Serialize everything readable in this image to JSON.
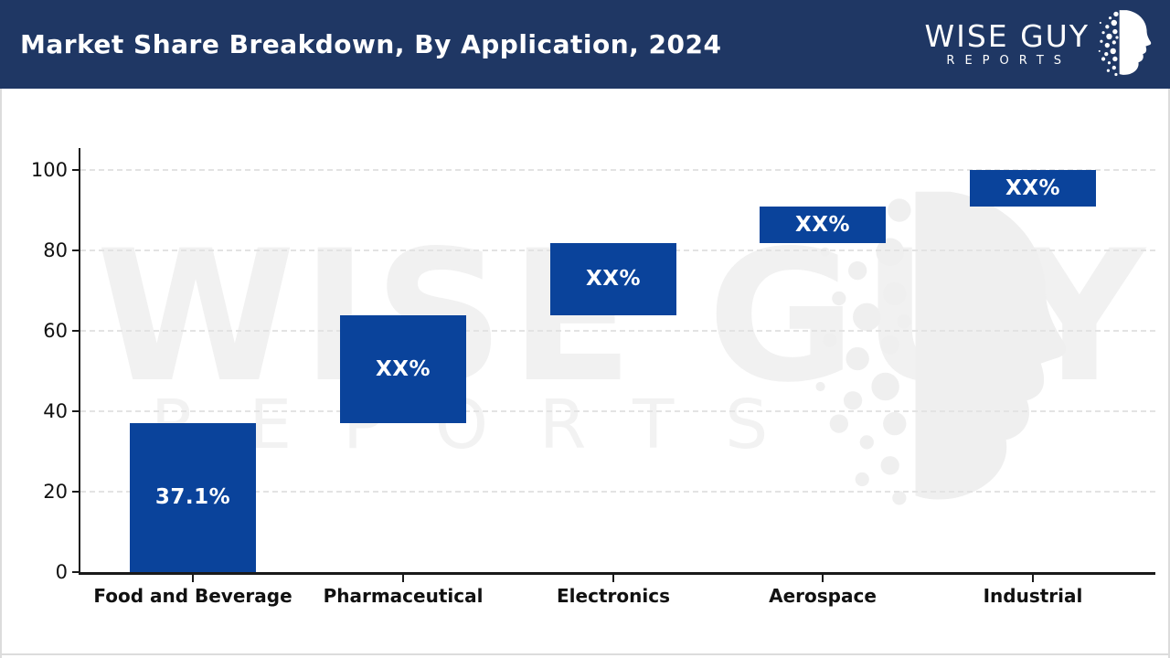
{
  "header": {
    "title": "Market Share Breakdown, By Application, 2024",
    "logo": {
      "line1": "WISE GUY",
      "line2": "REPORTS"
    }
  },
  "watermark": {
    "line1": "WISE GUY",
    "line2": "REPORTS"
  },
  "colors": {
    "header_bg": "#1f3764",
    "bar": "#0a439b",
    "bar_label": "#ffffff",
    "grid": "#e3e3e3",
    "axis": "#1a1a1a",
    "watermark": "#f1f1f1"
  },
  "chart_data": {
    "type": "bar",
    "subtype": "waterfall",
    "title": "Market Share Breakdown, By Application, 2024",
    "categories": [
      "Food and Beverage",
      "Pharmaceutical",
      "Electronics",
      "Aerospace",
      "Industrial"
    ],
    "segments": [
      {
        "category": "Food and Beverage",
        "start": 0,
        "end": 37.1,
        "label": "37.1%"
      },
      {
        "category": "Pharmaceutical",
        "start": 37.1,
        "end": 63.9,
        "label": "XX%"
      },
      {
        "category": "Electronics",
        "start": 63.9,
        "end": 81.8,
        "label": "XX%"
      },
      {
        "category": "Aerospace",
        "start": 81.8,
        "end": 90.9,
        "label": "XX%"
      },
      {
        "category": "Industrial",
        "start": 90.9,
        "end": 100,
        "label": "XX%"
      }
    ],
    "yticks": [
      "0",
      "20",
      "40",
      "60",
      "80",
      "100"
    ],
    "ylim": [
      0,
      100
    ],
    "xlabel": "",
    "ylabel": "",
    "grid": "dashed-horizontal",
    "legend": "none"
  }
}
